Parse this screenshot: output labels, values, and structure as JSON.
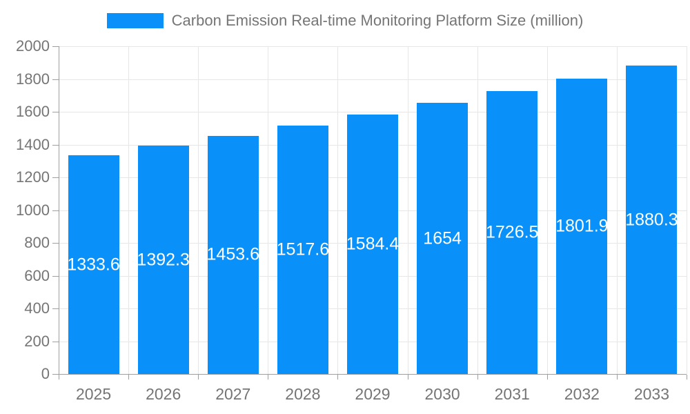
{
  "legend": {
    "swatch_color": "#0991f9",
    "label": "Carbon Emission Real-time Monitoring Platform Size (million)"
  },
  "chart_data": {
    "type": "bar",
    "title": "Carbon Emission Real-time Monitoring Platform Size (million)",
    "categories": [
      "2025",
      "2026",
      "2027",
      "2028",
      "2029",
      "2030",
      "2031",
      "2032",
      "2033"
    ],
    "values": [
      1333.6,
      1392.3,
      1453.6,
      1517.6,
      1584.4,
      1654,
      1726.5,
      1801.9,
      1880.3
    ],
    "value_labels": [
      "1333.6",
      "1392.3",
      "1453.6",
      "1517.6",
      "1584.4",
      "1654",
      "1726.5",
      "1801.9",
      "1880.3"
    ],
    "xlabel": "",
    "ylabel": "",
    "ylim": [
      0,
      2000
    ],
    "yticks": [
      0,
      200,
      400,
      600,
      800,
      1000,
      1200,
      1400,
      1600,
      1800,
      2000
    ],
    "grid": true,
    "legend_position": "top-center",
    "colors": {
      "bar": "#0991f9",
      "grid": "#e6e6e6",
      "axis": "#9e9e9e",
      "axis_text": "#757575",
      "value_text": "#ffffff",
      "background": "#ffffff"
    }
  }
}
